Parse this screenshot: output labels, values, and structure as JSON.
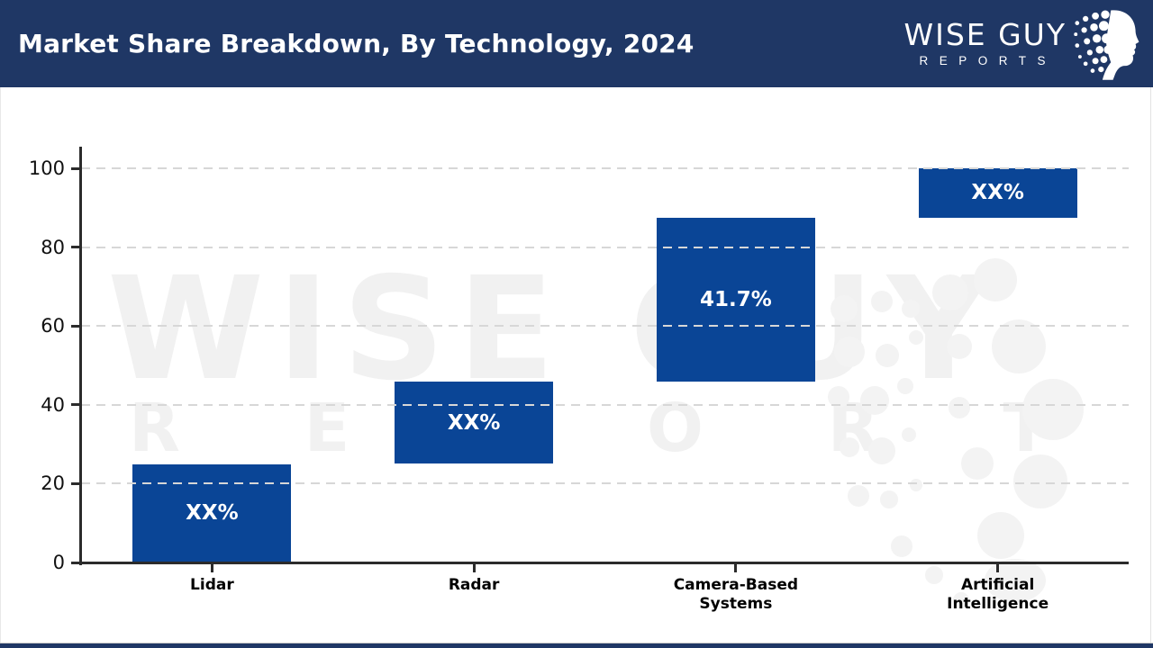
{
  "header": {
    "title": "Market Share Breakdown, By Technology, 2024",
    "brand_line1": "WISE GUY",
    "brand_line2": "REPORTS",
    "bg_color": "#1f3765"
  },
  "watermark": {
    "line1": "WISE GUY",
    "line2": "REPORTS"
  },
  "chart_data": {
    "type": "bar",
    "subtype": "floating-segment-breakdown (waterfall of market share)",
    "title": "Market Share Breakdown, By Technology, 2024",
    "categories": [
      "Lidar",
      "Radar",
      "Camera-Based Systems",
      "Artificial Intelligence"
    ],
    "segments": [
      {
        "category": "Lidar",
        "start": 0,
        "end": 25,
        "value_label": "XX%"
      },
      {
        "category": "Radar",
        "start": 25,
        "end": 45.8,
        "value_label": "XX%"
      },
      {
        "category": "Camera-Based Systems",
        "start": 45.8,
        "end": 87.5,
        "value_label": "41.7%"
      },
      {
        "category": "Artificial Intelligence",
        "start": 87.5,
        "end": 100,
        "value_label": "XX%"
      }
    ],
    "xlabel": "",
    "ylabel": "",
    "ylim": [
      0,
      105
    ],
    "yticks": [
      0,
      20,
      40,
      60,
      80,
      100
    ],
    "grid": "horizontal dashed, drawn over bars",
    "legend": "none",
    "bar_color": "#0a4596",
    "bar_label_color": "#ffffff",
    "axis_color": "#2b2b2b",
    "gridline_color": "#d7d7d7"
  },
  "colors": {
    "header_bg": "#1f3765",
    "footer_bg": "#1f3765",
    "watermark": "#f1f1f1",
    "page_bg": "#ffffff"
  }
}
